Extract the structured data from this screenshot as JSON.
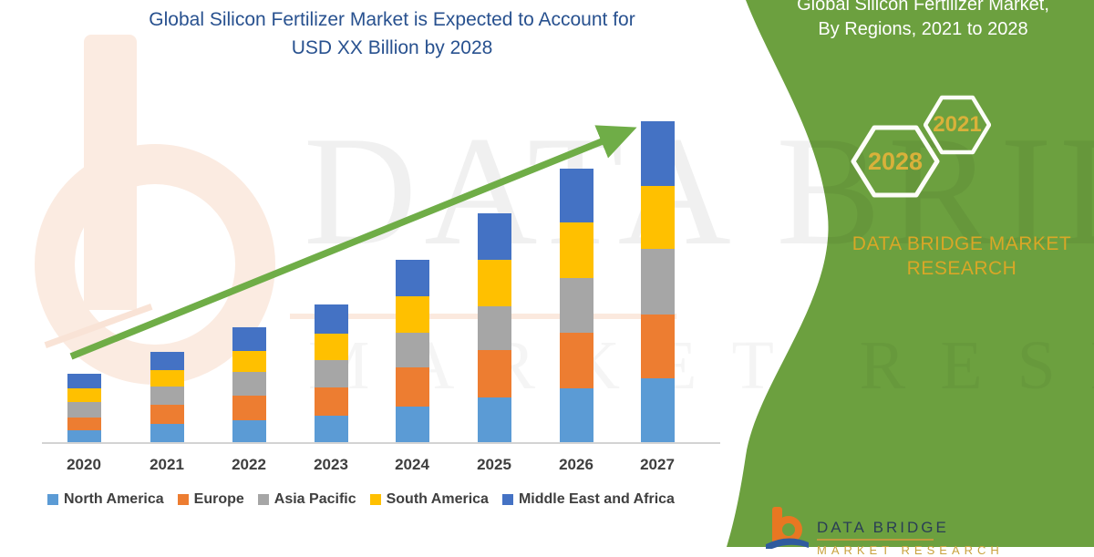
{
  "title": {
    "line1": "Global Silicon Fertilizer Market is Expected to Account for",
    "line2": "USD XX Billion by 2028",
    "color": "#28518F"
  },
  "chart_data": {
    "type": "bar",
    "stacked": true,
    "title": "Global Silicon Fertilizer Market is Expected to Account for USD XX Billion by 2028",
    "xlabel": "",
    "ylabel": "",
    "value_units": "market size index (USD XX Billion, y-axis not labeled)",
    "ylim": [
      0,
      380
    ],
    "grid": false,
    "legend_position": "bottom",
    "trend_arrow": "rising left-to-right, green",
    "categories": [
      "2020",
      "2021",
      "2022",
      "2023",
      "2024",
      "2025",
      "2026",
      "2027"
    ],
    "series": [
      {
        "name": "North America",
        "color": "#5B9BD5",
        "values": [
          14,
          21,
          25,
          30,
          40,
          50,
          60,
          71
        ]
      },
      {
        "name": "Europe",
        "color": "#ED7D31",
        "values": [
          14,
          21,
          27,
          31,
          43,
          52,
          61,
          70
        ]
      },
      {
        "name": "Asia Pacific",
        "color": "#A6A6A6",
        "values": [
          17,
          20,
          26,
          30,
          38,
          48,
          60,
          72
        ]
      },
      {
        "name": "South America",
        "color": "#FFC000",
        "values": [
          15,
          18,
          23,
          29,
          40,
          51,
          61,
          69
        ]
      },
      {
        "name": "Middle East and Africa",
        "color": "#4472C4",
        "values": [
          16,
          20,
          26,
          32,
          40,
          51,
          59,
          71
        ]
      }
    ],
    "totals": [
      76,
      100,
      127,
      152,
      201,
      252,
      301,
      353
    ]
  },
  "sidebar": {
    "bg_color": "#6CA03F",
    "heading_line1": "Global Silicon Fertilizer Market,",
    "heading_line2": "By Regions, 2021 to 2028",
    "hex_left_year": "2028",
    "hex_right_year": "2021",
    "brand_line1": "DATA BRIDGE MARKET",
    "brand_line2": "RESEARCH",
    "gold_color": "#D9A727"
  },
  "footer": {
    "brand": "DATA BRIDGE",
    "sub": "MARKET RESEARCH"
  },
  "watermark": {
    "line1": "DATA BRIDGE",
    "line2": "MARKET RESEARCH"
  },
  "colors": {
    "trend_arrow": "#6FAD47",
    "axis_line": "#D3D3D3",
    "title_blue": "#28518F"
  }
}
